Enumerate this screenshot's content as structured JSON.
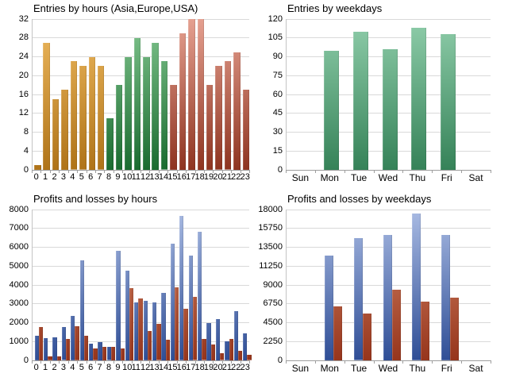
{
  "charts": [
    {
      "id": "entries-by-hours",
      "type": "bar",
      "title": "Entries by hours (Asia,Europe,USA)",
      "categories": [
        "0",
        "1",
        "2",
        "3",
        "4",
        "5",
        "6",
        "7",
        "8",
        "9",
        "10",
        "11",
        "12",
        "13",
        "14",
        "15",
        "16",
        "17",
        "18",
        "19",
        "20",
        "21",
        "22",
        "23"
      ],
      "series": [
        {
          "name": "entries",
          "values": [
            1,
            27,
            15,
            17,
            23,
            22,
            24,
            22,
            11,
            18,
            24,
            28,
            24,
            27,
            23,
            18,
            29,
            32,
            32,
            18,
            22,
            23,
            25,
            17
          ],
          "palette_by_bar": [
            "orange",
            "orange",
            "orange",
            "orange",
            "orange",
            "orange",
            "orange",
            "orange",
            "green",
            "green",
            "green",
            "green",
            "green",
            "green",
            "green",
            "red",
            "red",
            "red",
            "red",
            "red",
            "red",
            "red",
            "red",
            "red"
          ]
        }
      ],
      "palettes": {
        "orange": {
          "light": "#EEB95F",
          "dark": "#AF7318"
        },
        "green": {
          "light": "#82C68F",
          "dark": "#1A6B30"
        },
        "red": {
          "light": "#E5A090",
          "dark": "#8E3420"
        }
      },
      "ylim": [
        0,
        32
      ],
      "ystep": 4,
      "y_tick_labels": [
        "0",
        "4",
        "8",
        "12",
        "16",
        "20",
        "24",
        "28",
        "32"
      ],
      "grid": true,
      "legend": "none"
    },
    {
      "id": "entries-by-weekdays",
      "type": "bar",
      "title": "Entries by weekdays",
      "categories": [
        "Sun",
        "Mon",
        "Tue",
        "Wed",
        "Thu",
        "Fri",
        "Sat"
      ],
      "series": [
        {
          "name": "entries",
          "values": [
            0,
            95,
            110,
            96,
            113,
            108,
            0
          ],
          "palette": "green"
        }
      ],
      "palettes": {
        "green": {
          "light": "#8FCDAA",
          "dark": "#358258"
        }
      },
      "ylim": [
        0,
        120
      ],
      "ystep": 15,
      "y_tick_labels": [
        "0",
        "15",
        "30",
        "45",
        "60",
        "75",
        "90",
        "105",
        "120"
      ],
      "grid": true,
      "legend": "none"
    },
    {
      "id": "profits-losses-by-hours",
      "type": "bar",
      "title": "Profits and losses by hours",
      "categories": [
        "0",
        "1",
        "2",
        "3",
        "4",
        "5",
        "6",
        "7",
        "8",
        "9",
        "10",
        "11",
        "12",
        "13",
        "14",
        "15",
        "16",
        "17",
        "18",
        "19",
        "20",
        "21",
        "22",
        "23"
      ],
      "series": [
        {
          "name": "profits",
          "values": [
            1300,
            1200,
            1220,
            1750,
            2350,
            5300,
            890,
            970,
            700,
            5810,
            4760,
            3080,
            3150,
            3080,
            3580,
            6200,
            7650,
            5550,
            6830,
            2000,
            2200,
            1000,
            2630,
            1450
          ],
          "palette": "blue"
        },
        {
          "name": "losses",
          "values": [
            1780,
            200,
            230,
            1140,
            1800,
            1320,
            620,
            730,
            730,
            630,
            3840,
            3280,
            1550,
            1920,
            1100,
            3870,
            2740,
            3350,
            1120,
            860,
            360,
            1150,
            500,
            280
          ],
          "palette": "red"
        }
      ],
      "palettes": {
        "blue": {
          "light": "#A9BBE3",
          "dark": "#2F4E96"
        },
        "red": {
          "light": "#D88A6A",
          "dark": "#96351C"
        }
      },
      "ylim": [
        0,
        8000
      ],
      "ystep": 1000,
      "y_tick_labels": [
        "0",
        "1000",
        "2000",
        "3000",
        "4000",
        "5000",
        "6000",
        "7000",
        "8000"
      ],
      "grid": true,
      "legend": "none"
    },
    {
      "id": "profits-losses-by-weekdays",
      "type": "bar",
      "title": "Profits and losses by weekdays",
      "categories": [
        "Sun",
        "Mon",
        "Tue",
        "Wed",
        "Thu",
        "Fri",
        "Sat"
      ],
      "series": [
        {
          "name": "profits",
          "values": [
            0,
            12500,
            14550,
            15000,
            17500,
            14950,
            0
          ],
          "palette": "blue"
        },
        {
          "name": "losses",
          "values": [
            0,
            6450,
            5600,
            8450,
            7050,
            7500,
            0
          ],
          "palette": "red"
        }
      ],
      "palettes": {
        "blue": {
          "light": "#A9BBE3",
          "dark": "#2F4E96"
        },
        "red": {
          "light": "#D88A6A",
          "dark": "#96351C"
        }
      },
      "ylim": [
        0,
        18000
      ],
      "ystep": 2250,
      "y_tick_labels": [
        "0",
        "2250",
        "4500",
        "6750",
        "9000",
        "11250",
        "13500",
        "15750",
        "18000"
      ],
      "grid": true,
      "legend": "none"
    }
  ]
}
